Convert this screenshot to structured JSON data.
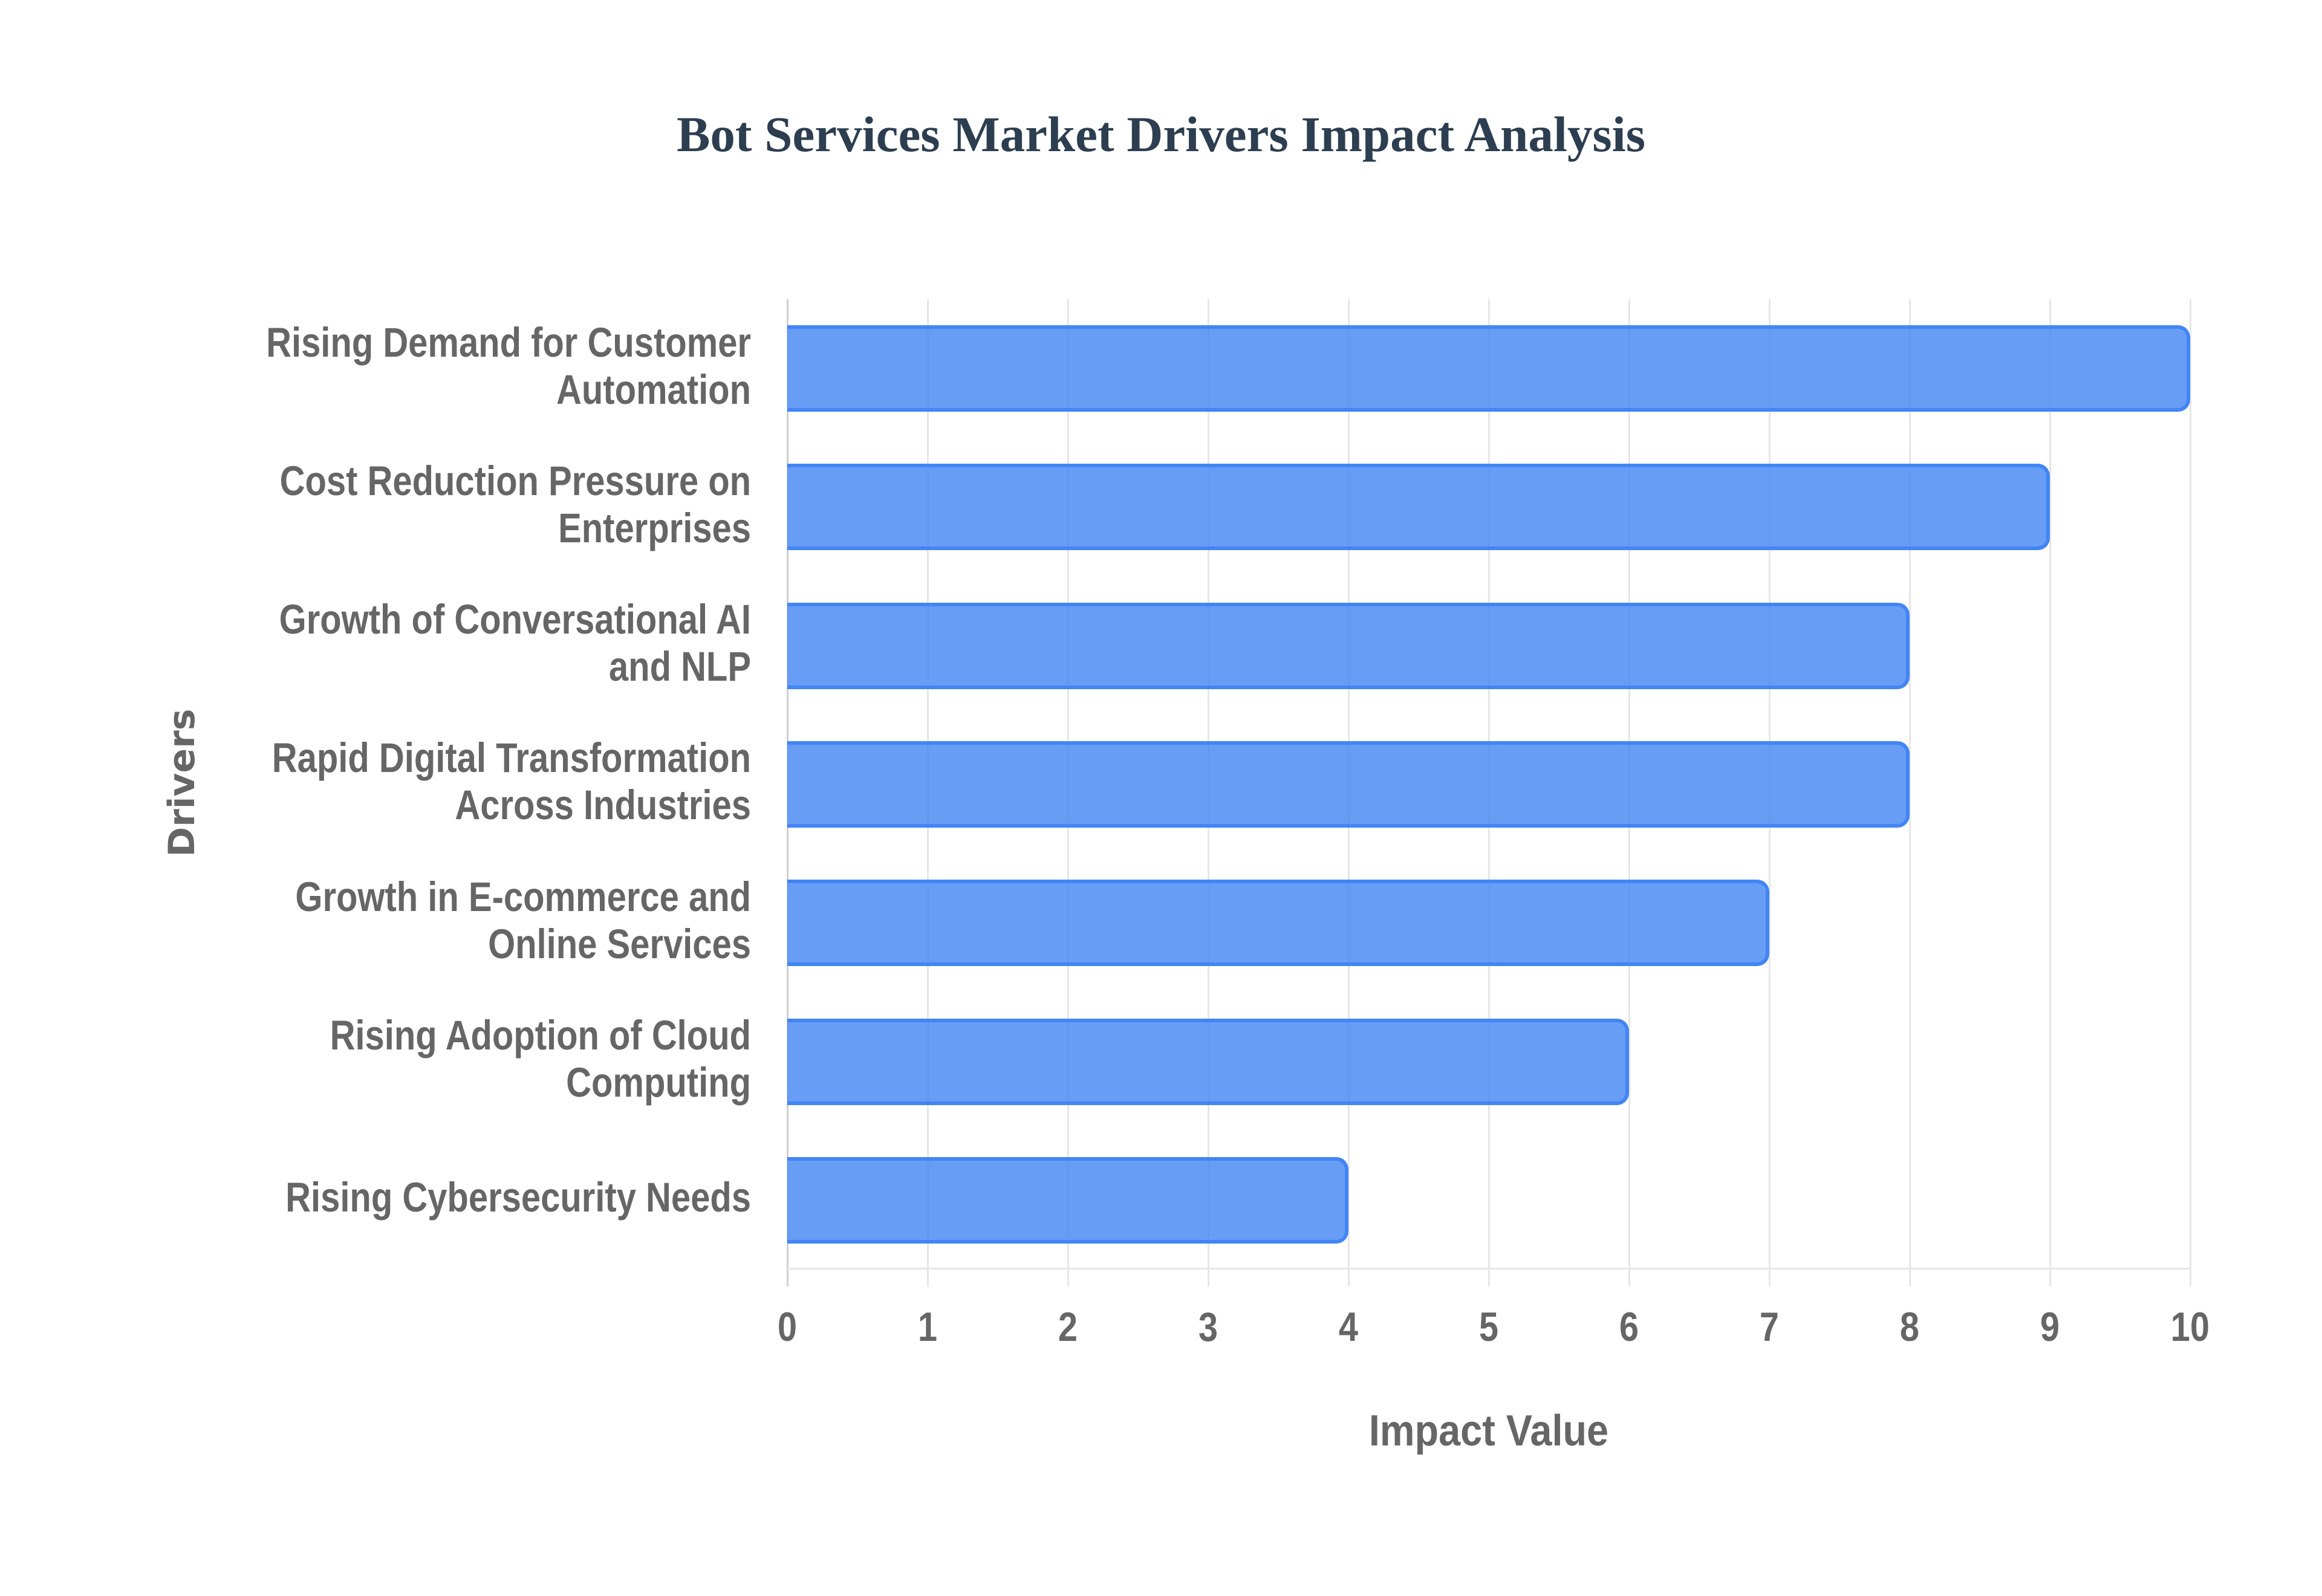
{
  "chart_data": {
    "type": "bar",
    "orientation": "horizontal",
    "title": "Bot Services Market Drivers Impact Analysis",
    "xlabel": "Impact Value",
    "ylabel": "Drivers",
    "xlim": [
      0,
      10
    ],
    "x_ticks": [
      "0",
      "1",
      "2",
      "3",
      "4",
      "5",
      "6",
      "7",
      "8",
      "9",
      "10"
    ],
    "grid": true,
    "legend": "none",
    "categories": [
      "Rising Demand for Customer Automation",
      "Cost Reduction Pressure on Enterprises",
      "Growth of Conversational AI and NLP",
      "Rapid Digital Transformation Across Industries",
      "Growth in E-commerce and Online Services",
      "Rising Adoption of Cloud Computing",
      "Rising Cybersecurity Needs"
    ],
    "category_lines": [
      [
        "Rising Demand for Customer",
        "Automation"
      ],
      [
        "Cost Reduction Pressure on",
        "Enterprises"
      ],
      [
        "Growth of Conversational AI",
        "and NLP"
      ],
      [
        "Rapid Digital Transformation",
        "Across Industries"
      ],
      [
        "Growth in E-commerce and",
        "Online Services"
      ],
      [
        "Rising Adoption of Cloud",
        "Computing"
      ],
      [
        "Rising Cybersecurity Needs"
      ]
    ],
    "values": [
      10,
      9,
      8,
      8,
      7,
      6,
      4
    ],
    "colors": {
      "bar_fill": "rgba(66,133,244,0.8)",
      "bar_border": "#4285f4",
      "title": "#2c3e50",
      "axis_text": "#666666",
      "grid": "#e6e6e6"
    }
  }
}
